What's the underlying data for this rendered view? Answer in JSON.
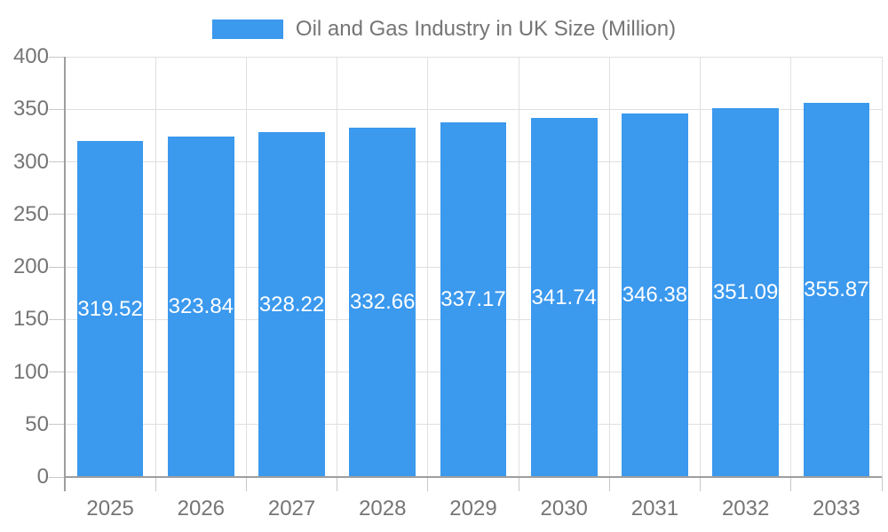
{
  "chart_data": {
    "type": "bar",
    "title": "Oil and Gas Industry in UK Size (Million)",
    "categories": [
      "2025",
      "2026",
      "2027",
      "2028",
      "2029",
      "2030",
      "2031",
      "2032",
      "2033"
    ],
    "values": [
      319.52,
      323.84,
      328.22,
      332.66,
      337.17,
      341.74,
      346.38,
      351.09,
      355.87
    ],
    "value_labels": [
      "319.52",
      "323.84",
      "328.22",
      "332.66",
      "337.17",
      "341.74",
      "346.38",
      "351.09",
      "355.87"
    ],
    "xlabel": "",
    "ylabel": "",
    "ylim": [
      0,
      400
    ],
    "yticks": [
      0,
      50,
      100,
      150,
      200,
      250,
      300,
      350,
      400
    ],
    "grid": true,
    "legend_position": "top-center",
    "colors": {
      "bar": "#3B99EE",
      "bar_label": "#FFFFFF",
      "axis_text": "#757575",
      "legend_text": "#757575",
      "gridline": "#E0E0E0",
      "tick": "#C8C8C8",
      "axis_line": "#9E9E9E",
      "background": "#FFFFFF"
    }
  }
}
